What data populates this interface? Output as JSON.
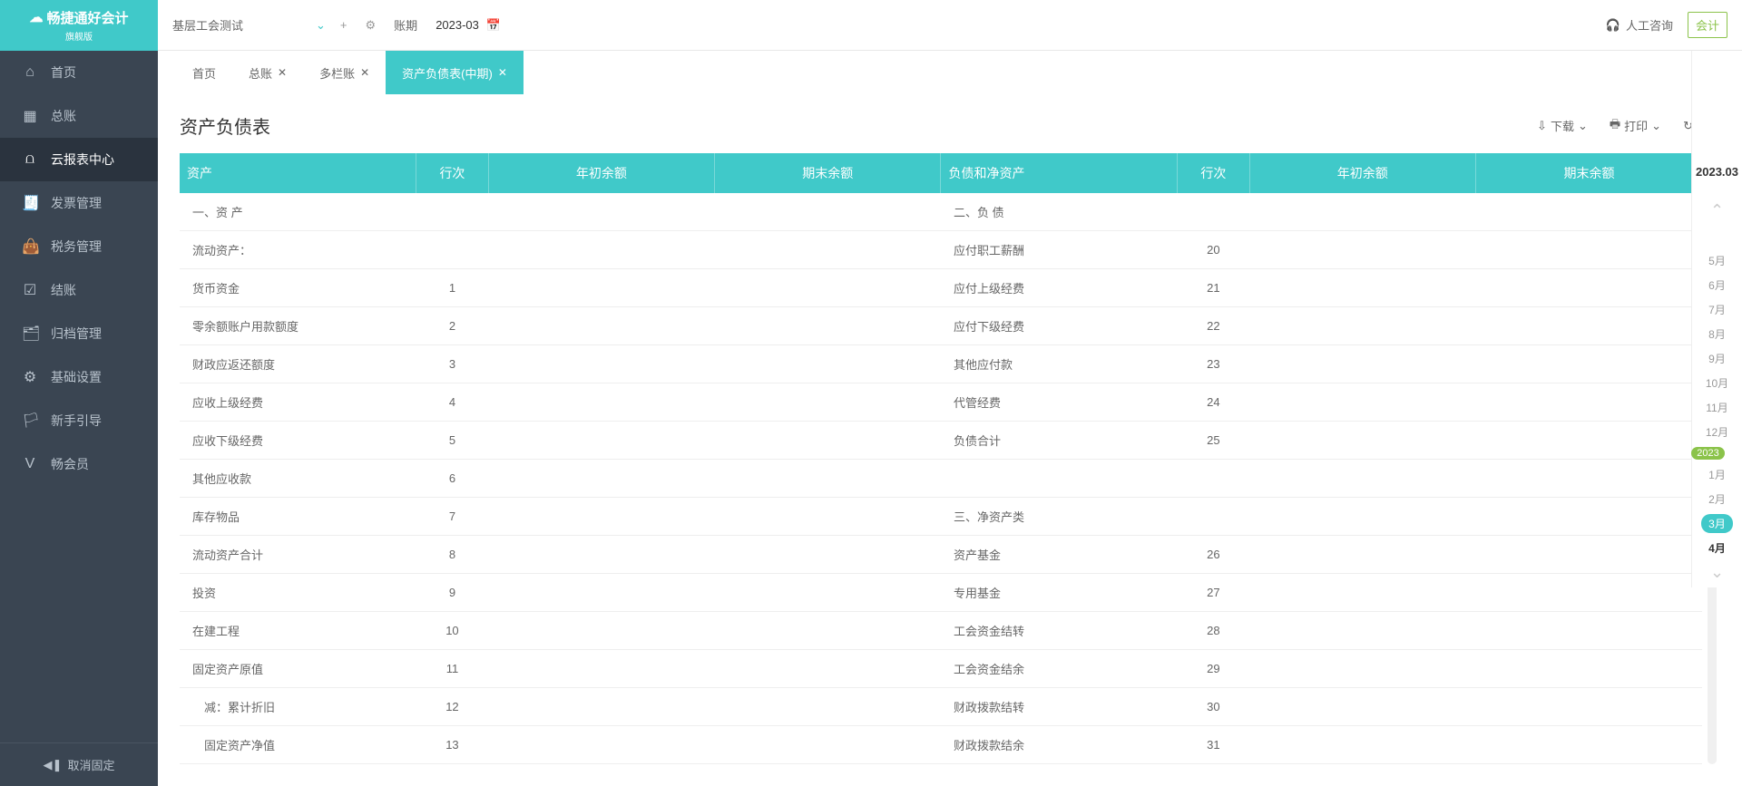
{
  "brand": {
    "name": "畅捷通好会计",
    "edition": "旗舰版"
  },
  "header": {
    "org_name": "基层工会测试",
    "period_label": "账期",
    "period_value": "2023-03",
    "support_label": "人工咨询",
    "role": "会计"
  },
  "sidebar": {
    "items": [
      {
        "icon": "⌂",
        "label": "首页"
      },
      {
        "icon": "▦",
        "label": "总账"
      },
      {
        "icon": "⩍",
        "label": "云报表中心",
        "active": true
      },
      {
        "icon": "🧾",
        "label": "发票管理"
      },
      {
        "icon": "👜",
        "label": "税务管理"
      },
      {
        "icon": "☑",
        "label": "结账"
      },
      {
        "icon": "🗂",
        "label": "归档管理"
      },
      {
        "icon": "⚙",
        "label": "基础设置"
      },
      {
        "icon": "🏳",
        "label": "新手引导"
      },
      {
        "icon": "V",
        "label": "畅会员"
      }
    ],
    "unpin": "取消固定"
  },
  "tabs": {
    "items": [
      {
        "label": "首页",
        "closable": false
      },
      {
        "label": "总账",
        "closable": true
      },
      {
        "label": "多栏账",
        "closable": true
      },
      {
        "label": "资产负债表(中期)",
        "closable": true,
        "active": true
      }
    ]
  },
  "page": {
    "title": "资产负债表",
    "actions": {
      "download": "下载",
      "print": "打印",
      "refresh": "刷新"
    }
  },
  "table": {
    "headers": {
      "asset": "资产",
      "row1": "行次",
      "year_begin": "年初余额",
      "period_end": "期末余额",
      "liab": "负债和净资产",
      "row2": "行次",
      "year_begin2": "年初余额",
      "period_end2": "期末余额"
    },
    "rows": [
      {
        "a": "一、资 产",
        "r1": "",
        "l": "二、负 债",
        "r2": ""
      },
      {
        "a": "流动资产：",
        "r1": "",
        "l": "应付职工薪酬",
        "r2": "20"
      },
      {
        "a": "货币资金",
        "r1": "1",
        "l": "应付上级经费",
        "r2": "21"
      },
      {
        "a": "零余额账户用款额度",
        "r1": "2",
        "l": "应付下级经费",
        "r2": "22"
      },
      {
        "a": "财政应返还额度",
        "r1": "3",
        "l": "其他应付款",
        "r2": "23"
      },
      {
        "a": "应收上级经费",
        "r1": "4",
        "l": "代管经费",
        "r2": "24"
      },
      {
        "a": "应收下级经费",
        "r1": "5",
        "l": "负债合计",
        "r2": "25"
      },
      {
        "a": "其他应收款",
        "r1": "6",
        "l": "",
        "r2": ""
      },
      {
        "a": "库存物品",
        "r1": "7",
        "l": "三、净资产类",
        "r2": ""
      },
      {
        "a": "流动资产合计",
        "r1": "8",
        "l": "资产基金",
        "r2": "26"
      },
      {
        "a": "投资",
        "r1": "9",
        "l": "专用基金",
        "r2": "27"
      },
      {
        "a": "在建工程",
        "r1": "10",
        "l": "工会资金结转",
        "r2": "28"
      },
      {
        "a": "固定资产原值",
        "r1": "11",
        "l": "工会资金结余",
        "r2": "29"
      },
      {
        "a": "　减：累计折旧",
        "r1": "12",
        "l": "财政拨款结转",
        "r2": "30"
      },
      {
        "a": "　固定资产净值",
        "r1": "13",
        "l": "财政拨款结余",
        "r2": "31"
      }
    ]
  },
  "rail": {
    "date": "2023.03",
    "year_badge": "2023",
    "months": [
      "5月",
      "6月",
      "7月",
      "8月",
      "9月",
      "10月",
      "11月",
      "12月",
      "1月",
      "2月",
      "3月",
      "4月"
    ],
    "current": "3月",
    "dark": "4月"
  },
  "colors": {
    "primary": "#40c9c9",
    "sidebar": "#3a4552"
  }
}
